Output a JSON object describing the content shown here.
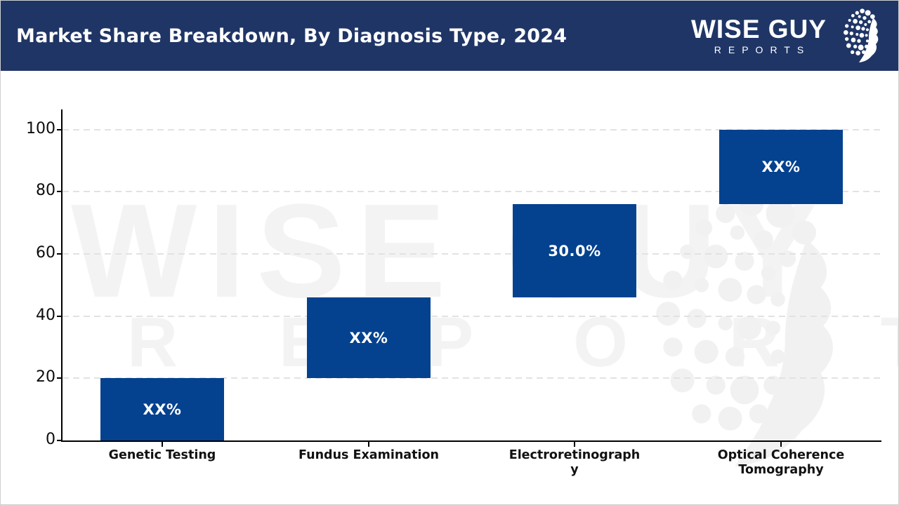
{
  "header": {
    "title": "Market Share Breakdown, By Diagnosis Type, 2024",
    "logo": {
      "brand_top": "WISE GUY",
      "brand_bottom": "REPORTS",
      "face_icon": "dotted-face-profile"
    }
  },
  "watermark": {
    "line1": "WISE GUY",
    "line2": "R E P O R T S",
    "face_icon": "dotted-face-profile"
  },
  "colors": {
    "header_bg": "#1f3566",
    "bar": "#04428f",
    "bar_label": "#ffffff",
    "gridline": "#e2e2e2",
    "watermark": "#f3f3f3",
    "axis": "#000000"
  },
  "chart_data": {
    "type": "bar",
    "subtype": "waterfall",
    "title": "Market Share Breakdown, By Diagnosis Type, 2024",
    "categories": [
      "Genetic Testing",
      "Fundus Examination",
      "Electroretinography",
      "Optical Coherence Tomography"
    ],
    "category_label_lines": [
      [
        "Genetic Testing"
      ],
      [
        "Fundus Examination"
      ],
      [
        "Electroretinograph",
        "y"
      ],
      [
        "Optical Coherence",
        "Tomography"
      ]
    ],
    "segments": [
      {
        "start": 0,
        "end": 20,
        "value": 20
      },
      {
        "start": 20,
        "end": 46,
        "value": 26
      },
      {
        "start": 46,
        "end": 76,
        "value": 30
      },
      {
        "start": 76,
        "end": 100,
        "value": 24
      }
    ],
    "bar_labels": [
      "XX%",
      "XX%",
      "30.0%",
      "XX%"
    ],
    "xlabel": "",
    "ylabel": "",
    "ylim": [
      0,
      100
    ],
    "yticks": [
      0,
      20,
      40,
      60,
      80,
      100
    ],
    "grid": "horizontal-dashed",
    "legend": "none"
  }
}
